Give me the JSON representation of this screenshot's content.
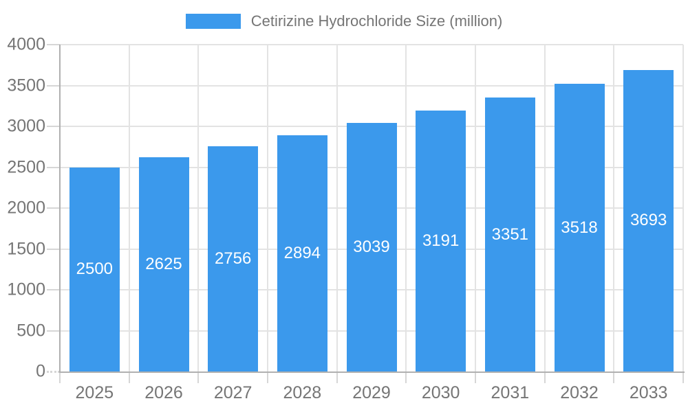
{
  "legend": {
    "label": "Cetirizine Hydrochloride Size (million)"
  },
  "colors": {
    "bar": "#3B99EC",
    "bar_value_text": "#FFFFFF",
    "axis_text": "#757575",
    "gridline": "#E3E3E3",
    "axis_line": "#B0B0B0",
    "tick": "#D6D6D6",
    "background": "#FFFFFF"
  },
  "chart_data": {
    "type": "bar",
    "title": "",
    "categories": [
      "2025",
      "2026",
      "2027",
      "2028",
      "2029",
      "2030",
      "2031",
      "2032",
      "2033"
    ],
    "series": [
      {
        "name": "Cetirizine Hydrochloride Size (million)",
        "values": [
          2500,
          2625,
          2756,
          2894,
          3039,
          3191,
          3351,
          3518,
          3693
        ]
      }
    ],
    "xlabel": "",
    "ylabel": "",
    "ylim": [
      0,
      4000
    ],
    "yticks": [
      0,
      500,
      1000,
      1500,
      2000,
      2500,
      3000,
      3500,
      4000
    ],
    "grid": true,
    "legend_position": "top-center",
    "value_labels": "inside-center"
  }
}
